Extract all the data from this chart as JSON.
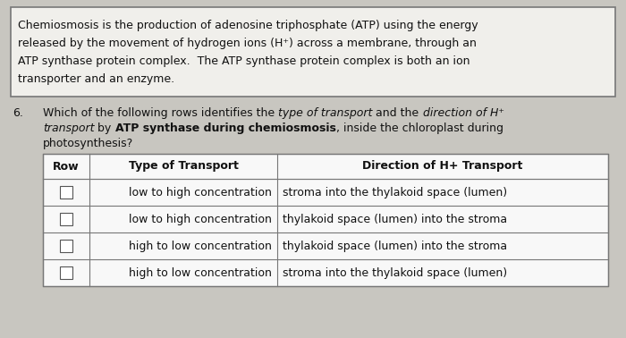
{
  "bg_color": "#c8c6c0",
  "box_bg": "#f0efeb",
  "table_bg": "#f5f5f5",
  "border_color": "#777777",
  "text_color": "#111111",
  "info_line1": "Chemiosmosis is the production of adenosine triphosphate (ATP) using the energy",
  "info_line2": "released by the movement of hydrogen ions (H⁺) across a membrane, through an",
  "info_line3": "ATP synthase protein complex.  The ATP synthase protein complex is both an ion",
  "info_line4": "transporter and an enzyme.",
  "q_num": "6.",
  "q_line1": [
    [
      "Which of the following rows identifies the ",
      false,
      false
    ],
    [
      "type of transport",
      false,
      true
    ],
    [
      " and the ",
      false,
      false
    ],
    [
      "direction of H⁺",
      false,
      true
    ]
  ],
  "q_line2": [
    [
      "transport",
      false,
      true
    ],
    [
      " by ",
      false,
      false
    ],
    [
      "ATP synthase during chemiosmosis",
      true,
      false
    ],
    [
      ", inside the chloroplast during",
      false,
      false
    ]
  ],
  "q_line3": [
    [
      "photosynthesis?",
      false,
      false
    ]
  ],
  "table_headers": [
    "Row",
    "Type of Transport",
    "Direction of H+ Transport"
  ],
  "table_rows": [
    [
      "low to high concentration",
      "stroma into the thylakoid space (lumen)"
    ],
    [
      "low to high concentration",
      "thylakoid space (lumen) into the stroma"
    ],
    [
      "high to low concentration",
      "thylakoid space (lumen) into the stroma"
    ],
    [
      "high to low concentration",
      "stroma into the thylakoid space (lumen)"
    ]
  ],
  "font_size": 9.0,
  "table_font_size": 9.0
}
